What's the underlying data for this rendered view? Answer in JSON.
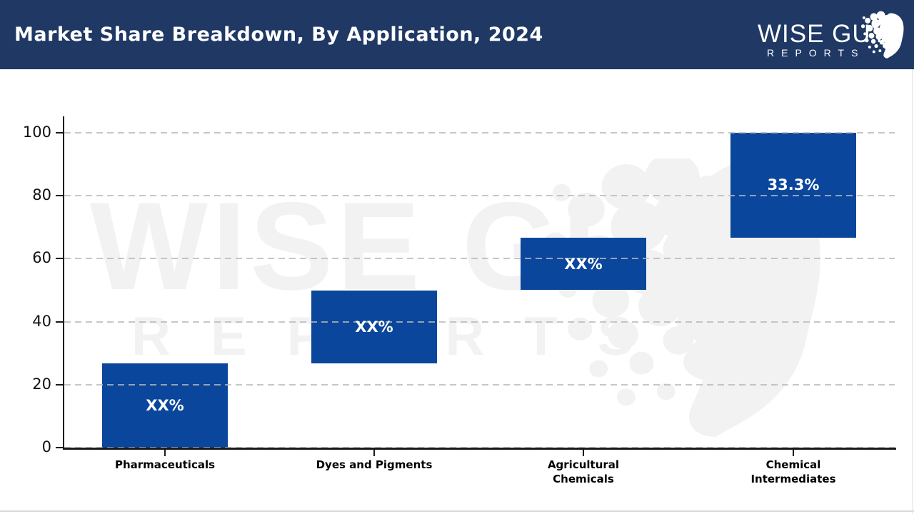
{
  "header": {
    "title": "Market Share Breakdown, By Application, 2024",
    "logo": {
      "wordmark": "WISE GUY",
      "subtext": "REPORTS"
    }
  },
  "watermark": {
    "wordmark": "WISE GUY",
    "subtext": "REPORTS"
  },
  "chart_data": {
    "type": "bar",
    "subtype": "waterfall-floating-bars",
    "title": "Market Share Breakdown, By Application, 2024",
    "categories": [
      "Pharmaceuticals",
      "Dyes and Pigments",
      "Agricultural Chemicals",
      "Chemical Intermediates"
    ],
    "category_label_lines": [
      [
        "Pharmaceuticals"
      ],
      [
        "Dyes and Pigments"
      ],
      [
        "Agricultural",
        "Chemicals"
      ],
      [
        "Chemical",
        "Intermediates"
      ]
    ],
    "segments": [
      {
        "category": "Pharmaceuticals",
        "start": 0,
        "end": 26.7,
        "label": "XX%"
      },
      {
        "category": "Dyes and Pigments",
        "start": 26.7,
        "end": 50.0,
        "label": "XX%"
      },
      {
        "category": "Agricultural Chemicals",
        "start": 50.0,
        "end": 66.7,
        "label": "XX%"
      },
      {
        "category": "Chemical Intermediates",
        "start": 66.7,
        "end": 100.0,
        "label": "33.3%"
      }
    ],
    "ylim": [
      0,
      100
    ],
    "yticks": [
      0,
      20,
      40,
      60,
      80,
      100
    ],
    "xlabel": "",
    "ylabel": "",
    "legend": "none",
    "grid": "horizontal dashed lines drawn over bars",
    "bar_color": "#0a469b"
  },
  "colors": {
    "header_bg": "#1f3864",
    "bar": "#0a469b",
    "axis": "#1a1a1a",
    "grid_dash": "#d3d3d3",
    "watermark": "#f2f2f2",
    "bar_label_text": "#ffffff"
  }
}
